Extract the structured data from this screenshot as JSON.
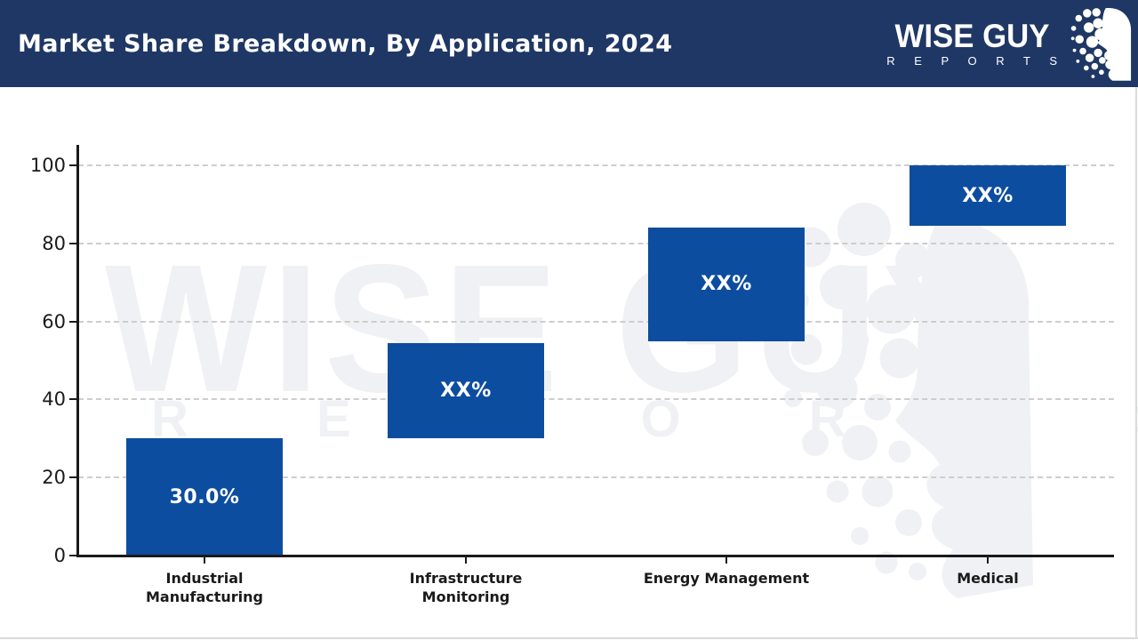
{
  "header": {
    "title": "Market Share Breakdown, By Application, 2024",
    "logo": {
      "brand": "WISE GUY",
      "tagline": "R E P O R T S"
    }
  },
  "colors": {
    "header_bg": "#1f3765",
    "bar": "#0d4d9f",
    "axis": "#1a1a1a",
    "gridline": "#cdcdcd",
    "bar_label_text": "#ffffff",
    "watermark": "#f0f1f4"
  },
  "watermark": {
    "brand": "WISE GUY",
    "tagline": "R E P O R T S"
  },
  "chart_data": {
    "type": "bar",
    "subtype": "waterfall-stacked",
    "title": "Market Share Breakdown, By Application, 2024",
    "categories": [
      "Industrial Manufacturing",
      "Infrastructure Monitoring",
      "Energy Management",
      "Medical"
    ],
    "category_label_lines": [
      [
        "Industrial",
        "Manufacturing"
      ],
      [
        "Infrastructure",
        "Monitoring"
      ],
      [
        "Energy Management"
      ],
      [
        "Medical"
      ]
    ],
    "segments": [
      {
        "category": "Industrial Manufacturing",
        "start": 0,
        "end": 30,
        "label": "30.0%"
      },
      {
        "category": "Infrastructure Monitoring",
        "start": 30,
        "end": 54.5,
        "label": "XX%"
      },
      {
        "category": "Energy Management",
        "start": 55,
        "end": 84,
        "label": "XX%"
      },
      {
        "category": "Medical",
        "start": 84.5,
        "end": 100,
        "label": "XX%"
      }
    ],
    "ylabel": "",
    "xlabel": "",
    "ylim": [
      0,
      100
    ],
    "yticks": [
      0,
      20,
      40,
      60,
      80,
      100
    ],
    "grid": "horizontal-dashed",
    "legend": "none"
  }
}
